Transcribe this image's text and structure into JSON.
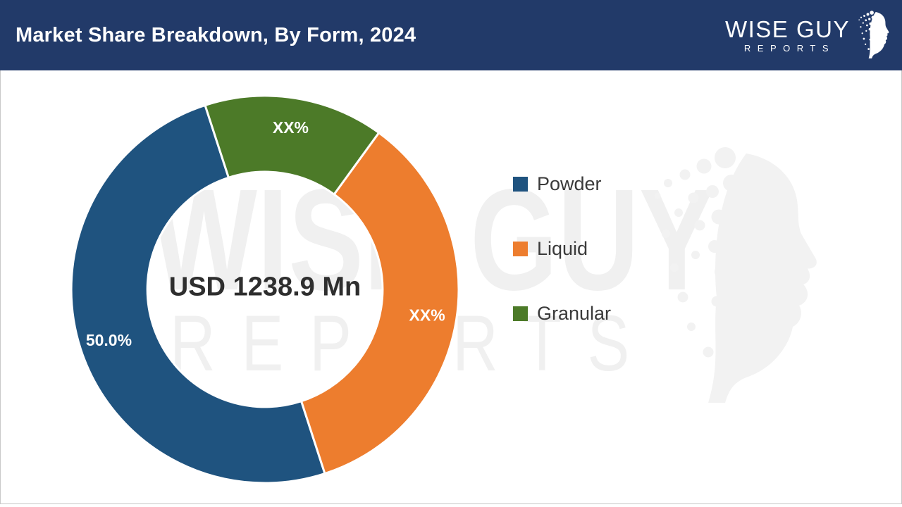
{
  "header": {
    "title": "Market Share Breakdown, By Form, 2024",
    "bg_color": "#223A69",
    "logo": {
      "line1": "WISE GUY",
      "line2": "REPORTS"
    }
  },
  "watermark": {
    "line1": "WISE GUY",
    "line2": "REPORTS",
    "color": "#F0F0F0"
  },
  "chart_data": {
    "type": "pie",
    "subtype": "donut",
    "title": "Market Share Breakdown, By Form, 2024",
    "center_label": "USD 1238.9 Mn",
    "categories": [
      "Powder",
      "Liquid",
      "Granular"
    ],
    "values": [
      50.0,
      35.0,
      15.0
    ],
    "slice_labels": [
      "50.0%",
      "XX%",
      "XX%"
    ],
    "colors": [
      "#1F537F",
      "#ED7D2E",
      "#4C7A28"
    ],
    "start_angle_deg": 108,
    "direction": "counterclockwise",
    "inner_radius_ratio": 0.607,
    "legend_position": "right",
    "slice_gap_color": "#FFFFFF"
  }
}
